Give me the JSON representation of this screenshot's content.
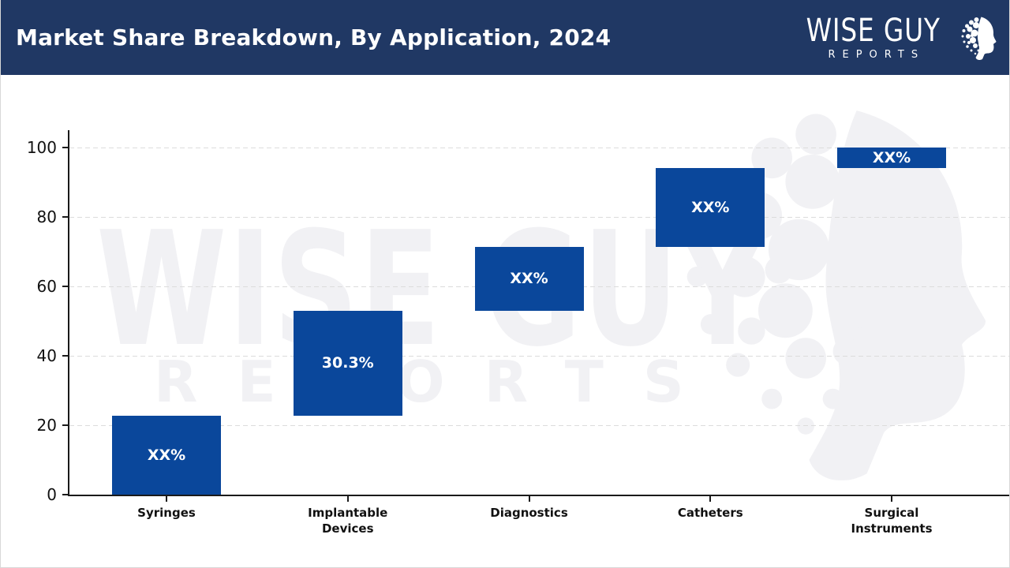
{
  "header": {
    "title": "Market Share Breakdown, By Application, 2024",
    "logo_line1": "WISE GUY",
    "logo_line2": "REPORTS"
  },
  "watermark": {
    "line1": "WISE GUY",
    "line2": "REPORTS"
  },
  "chart_data": {
    "type": "bar",
    "subtype": "floating_waterfall_segments",
    "title": "Market Share Breakdown, By Application, 2024",
    "categories": [
      "Syringes",
      "Implantable\nDevices",
      "Diagnostics",
      "Catheters",
      "Surgical\nInstruments"
    ],
    "segments": [
      {
        "category": "Syringes",
        "start": 0,
        "end": 22.7,
        "value": 22.7,
        "label": "XX%"
      },
      {
        "category": "Implantable Devices",
        "start": 22.7,
        "end": 53.0,
        "value": 30.3,
        "label": "30.3%"
      },
      {
        "category": "Diagnostics",
        "start": 53.0,
        "end": 71.4,
        "value": 18.4,
        "label": "XX%"
      },
      {
        "category": "Catheters",
        "start": 71.4,
        "end": 94.1,
        "value": 22.7,
        "label": "XX%"
      },
      {
        "category": "Surgical Instruments",
        "start": 94.1,
        "end": 100.0,
        "value": 5.9,
        "label": "XX%"
      }
    ],
    "xlabel": "",
    "ylabel": "",
    "ylim": [
      0,
      100
    ],
    "yticks": [
      0,
      20,
      40,
      60,
      80,
      100
    ],
    "grid": "horizontal dashed",
    "legend": "none",
    "colors": {
      "bar": "#0a479b",
      "bar_label": "#ffffff",
      "axis": "#1a1a1a",
      "grid": "#dcdcdc",
      "header_bg": "#203864"
    }
  }
}
